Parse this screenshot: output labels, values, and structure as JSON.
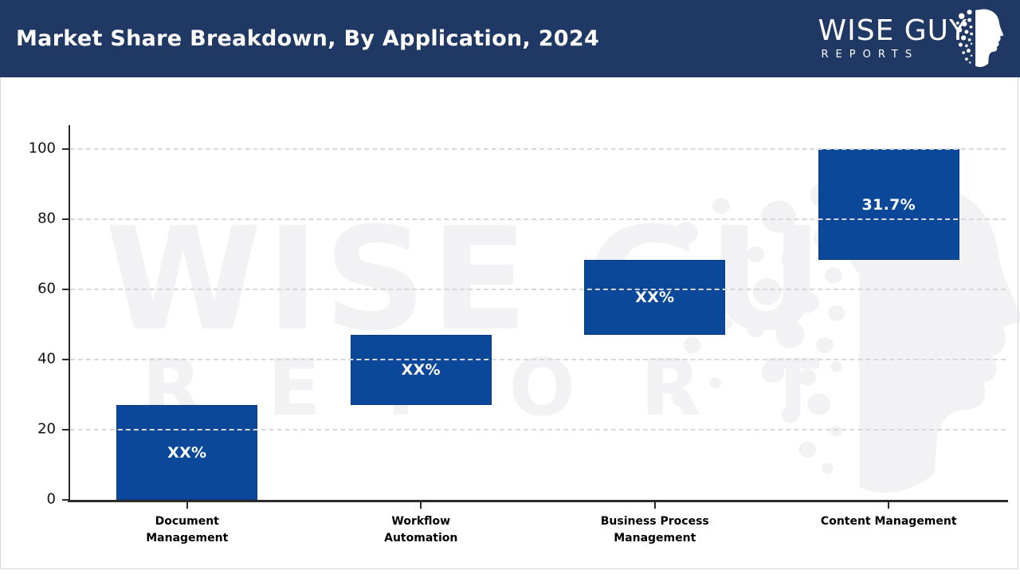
{
  "header": {
    "title": "Market Share Breakdown, By Application, 2024",
    "logo_line1": "WISE GUY",
    "logo_line2": "REPORTS",
    "bg_color": "#203864"
  },
  "watermark": {
    "line1": "WISE GUY",
    "line2": "R E P O R T S",
    "color": "#f2f2f4"
  },
  "chart_data": {
    "type": "bar",
    "variant": "floating_segment_waterfall",
    "title": "Market Share Breakdown, By Application, 2024",
    "categories": [
      "Document Management",
      "Workflow Automation",
      "Business Process Management",
      "Content Management"
    ],
    "categories_display": [
      "Document\nManagement",
      "Workflow\nAutomation",
      "Business Process\nManagement",
      "Content Management"
    ],
    "bars": [
      {
        "category": "Document Management",
        "start": 0,
        "end": 27,
        "label": "XX%"
      },
      {
        "category": "Workflow Automation",
        "start": 27,
        "end": 47,
        "label": "XX%"
      },
      {
        "category": "Business Process Management",
        "start": 47,
        "end": 68.3,
        "label": "XX%"
      },
      {
        "category": "Content Management",
        "start": 68.3,
        "end": 100,
        "label": "31.7%"
      }
    ],
    "ylim": [
      0,
      100
    ],
    "yticks": [
      0,
      20,
      40,
      60,
      80,
      100
    ],
    "xlabel": "",
    "ylabel": "",
    "legend": null,
    "grid": {
      "horizontal": true,
      "style": "dashed",
      "color": "#d8d8d8",
      "above_bars": true
    },
    "bar_color": "#0b4899",
    "bar_label_color": "#ffffff",
    "axis_color": "#2b2b2b",
    "tick_label_color": "#111111",
    "background_color": "#ffffff"
  }
}
